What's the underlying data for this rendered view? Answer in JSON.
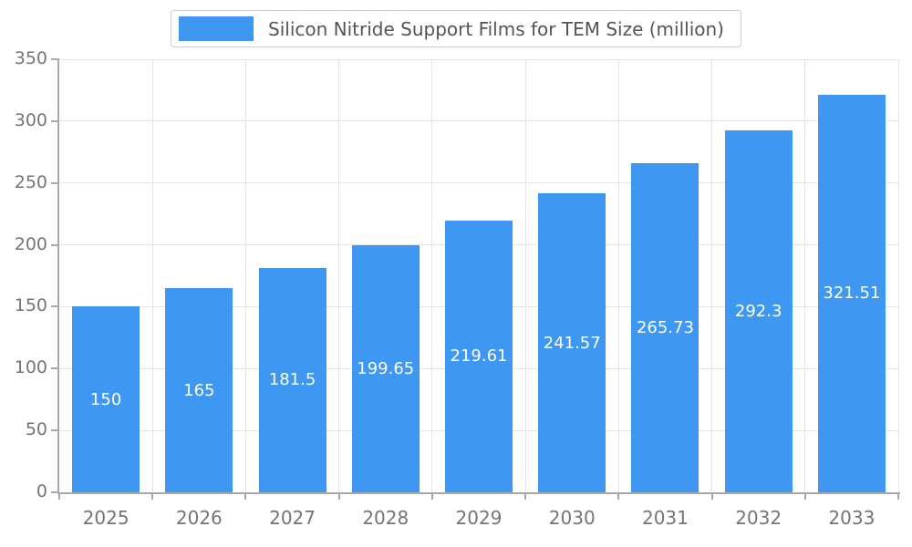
{
  "legend": {
    "label": "Silicon Nitride Support Films for TEM Size (million)"
  },
  "chart_data": {
    "type": "bar",
    "title": "Silicon Nitride Support Films for TEM Size (million)",
    "categories": [
      "2025",
      "2026",
      "2027",
      "2028",
      "2029",
      "2030",
      "2031",
      "2032",
      "2033"
    ],
    "values": [
      150,
      165,
      181.5,
      199.65,
      219.61,
      241.57,
      265.73,
      292.3,
      321.51
    ],
    "value_labels": [
      "150",
      "165",
      "181.5",
      "199.65",
      "219.61",
      "241.57",
      "265.73",
      "292.3",
      "321.51"
    ],
    "xlabel": "",
    "ylabel": "",
    "ylim": [
      0,
      350
    ],
    "ytick_step": 50,
    "ytick_labels": [
      "0",
      "50",
      "100",
      "150",
      "200",
      "250",
      "300",
      "350"
    ],
    "bar_color": "#3E97F0",
    "value_label_color": "#ffffff",
    "grid": true,
    "legend_position": "top-center"
  }
}
